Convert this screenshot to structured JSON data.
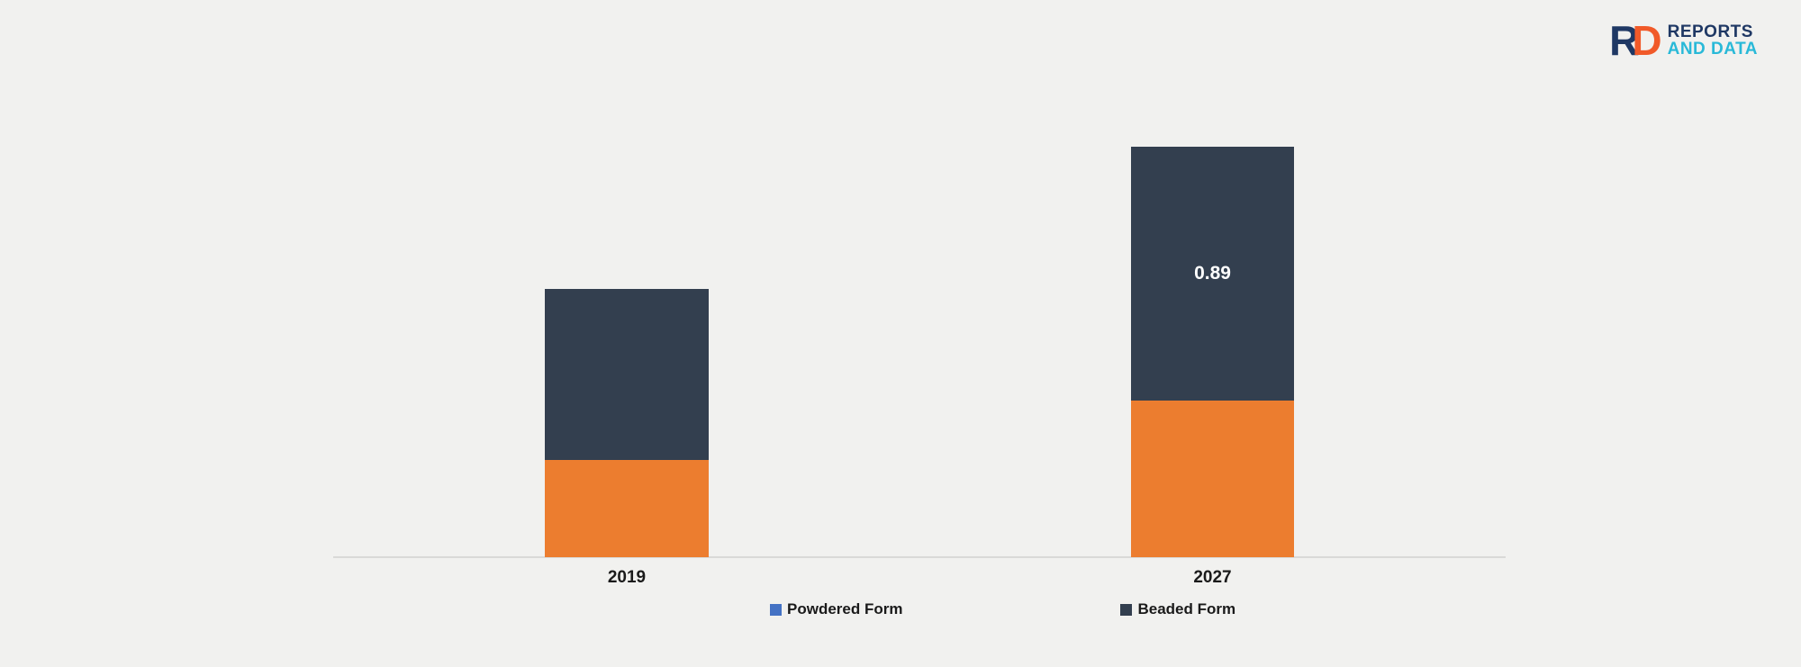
{
  "logo": {
    "mark_r": "R",
    "mark_d": "D",
    "line1": "REPORTS",
    "line2": "AND DATA"
  },
  "colors": {
    "background": "#f1f1ef",
    "axis_line": "#d9d9d7",
    "powdered_bar": "#ec7d2f",
    "beaded_bar": "#333f4f",
    "powdered_legend_marker": "#4472c4",
    "beaded_legend_marker": "#333f4f",
    "logo_navy": "#1f3864",
    "logo_orange": "#f15a29",
    "logo_cyan": "#29b9d8"
  },
  "chart_data": {
    "type": "bar",
    "stacked": true,
    "categories": [
      "2019",
      "2027"
    ],
    "series": [
      {
        "name": "Powdered Form",
        "values": [
          0.34,
          0.55
        ],
        "color": "#ec7d2f",
        "legend_marker_color": "#4472c4"
      },
      {
        "name": "Beaded Form",
        "values": [
          0.6,
          0.89
        ],
        "color": "#333f4f",
        "legend_marker_color": "#333f4f"
      }
    ],
    "data_labels": [
      {
        "series": "Beaded Form",
        "category": "2027",
        "text": "0.89"
      }
    ],
    "title": "",
    "xlabel": "",
    "ylabel": "",
    "ylim": [
      0,
      1.55
    ],
    "grid": false,
    "legend_position": "bottom"
  }
}
